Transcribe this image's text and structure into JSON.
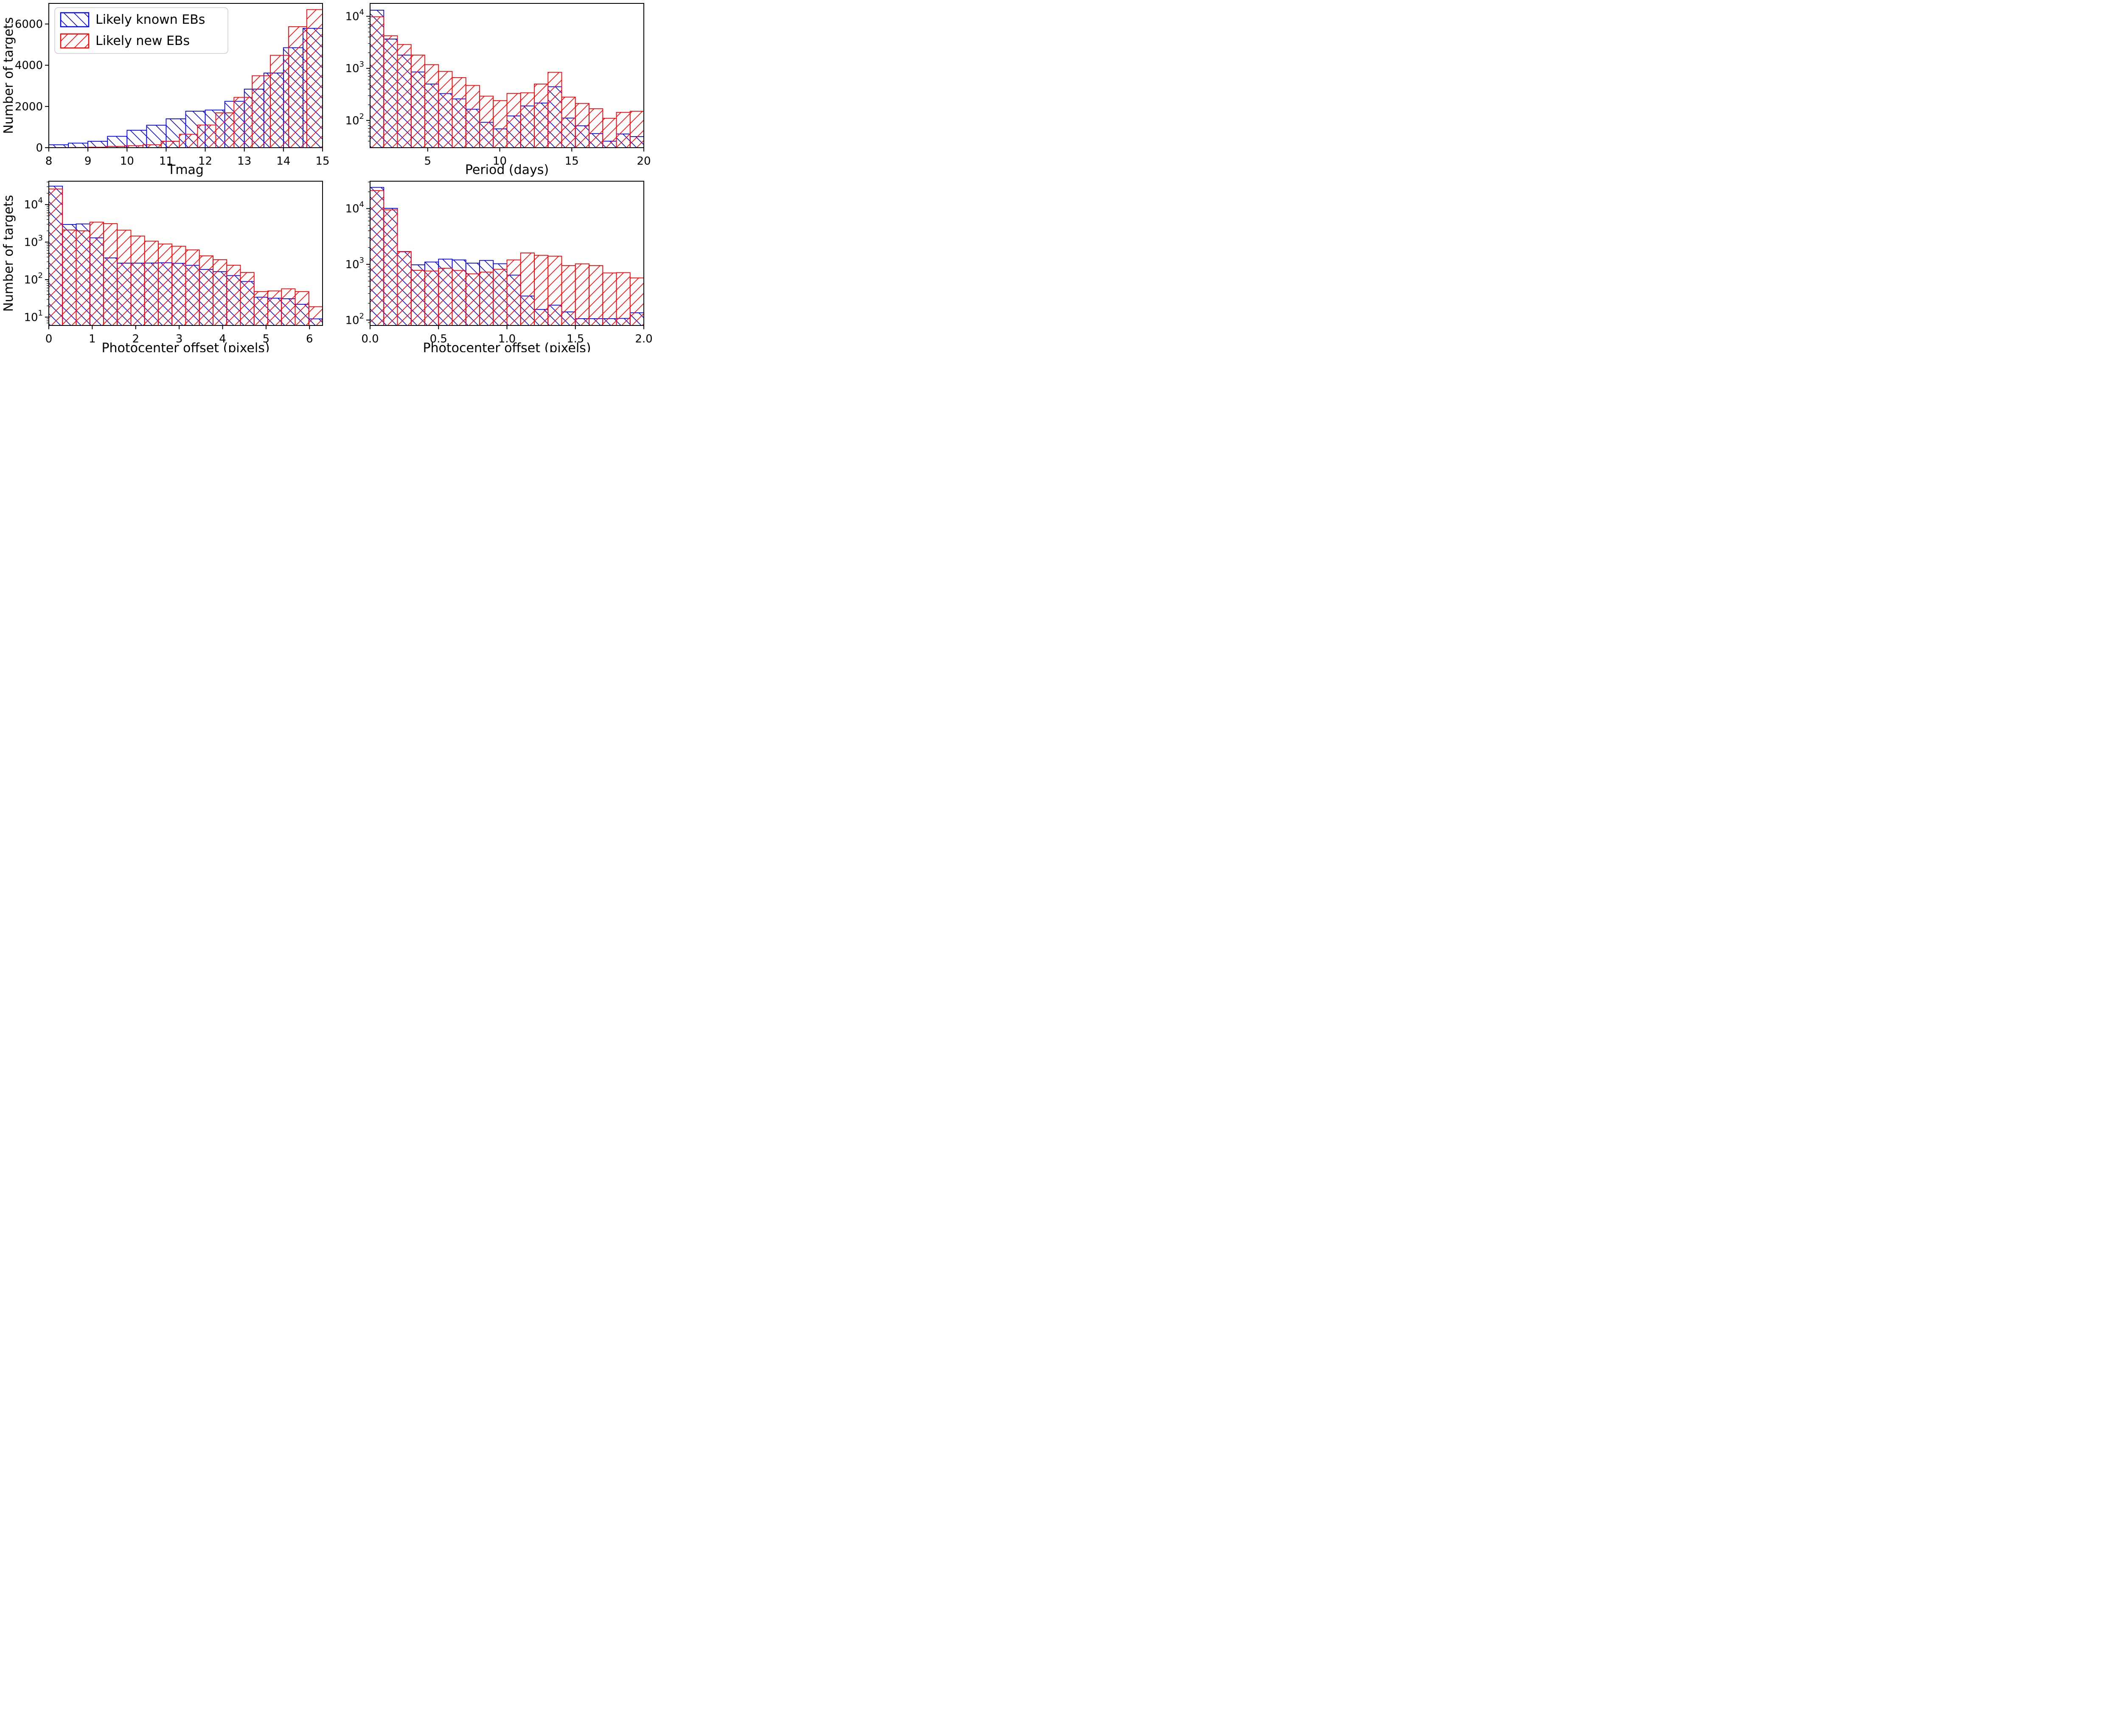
{
  "figure": {
    "background": "#ffffff",
    "axis_color": "#000000",
    "tick_label_color": "#000000",
    "legend": {
      "entries": [
        {
          "label": "Likely known EBs",
          "color": "#0000ff",
          "hatch": "\\"
        },
        {
          "label": "Likely new EBs",
          "color": "#ff0000",
          "hatch": "/"
        }
      ]
    }
  },
  "chart_data": [
    {
      "id": "tmag",
      "type": "histogram",
      "title": "",
      "xlabel": "Tmag",
      "ylabel": "Number of targets",
      "yscale": "linear",
      "xlim": [
        8,
        15
      ],
      "ylim": [
        0,
        7000
      ],
      "xticks": [
        8,
        9,
        10,
        11,
        12,
        13,
        14,
        15
      ],
      "xtick_labels": [
        "8",
        "9",
        "10",
        "11",
        "12",
        "13",
        "14",
        "15"
      ],
      "yticks": [
        0,
        2000,
        4000,
        6000
      ],
      "ytick_labels": [
        "0",
        "2000",
        "4000",
        "6000"
      ],
      "show_legend": true,
      "series": [
        {
          "name": "Likely known EBs",
          "color": "#0000ff",
          "hatch": "\\",
          "bin_start": 8.0,
          "bin_width": 0.5,
          "counts": [
            140,
            220,
            310,
            550,
            845,
            1090,
            1400,
            1770,
            1825,
            2250,
            2840,
            3620,
            4850,
            5790
          ]
        },
        {
          "name": "Likely new EBs",
          "color": "#ff0000",
          "hatch": "/",
          "bin_start": 8.08,
          "bin_width": 0.4655,
          "counts": [
            5,
            10,
            25,
            60,
            95,
            140,
            310,
            650,
            1100,
            1690,
            2440,
            3490,
            4480,
            5870,
            6700
          ]
        }
      ]
    },
    {
      "id": "period",
      "type": "histogram",
      "title": "",
      "xlabel": "Period (days)",
      "ylabel": "",
      "yscale": "log",
      "xlim": [
        1,
        20
      ],
      "ylim": [
        30,
        17700
      ],
      "xticks": [
        5,
        10,
        15,
        20
      ],
      "xtick_labels": [
        "5",
        "10",
        "15",
        "20"
      ],
      "ytick_exponents": [
        2,
        3,
        4
      ],
      "ytick_base": "10",
      "show_legend": false,
      "series": [
        {
          "name": "Likely known EBs",
          "color": "#0000ff",
          "hatch": "\\",
          "bin_start": 1.0,
          "bin_width": 0.95,
          "counts": [
            13100,
            3660,
            1800,
            853,
            500,
            328,
            259,
            164,
            92,
            69,
            122,
            190,
            216,
            444,
            111,
            79,
            56,
            40,
            55,
            49
          ]
        },
        {
          "name": "Likely new EBs",
          "color": "#ff0000",
          "hatch": "/",
          "bin_start": 1.0,
          "bin_width": 0.95,
          "counts": [
            9800,
            4230,
            2880,
            1800,
            1180,
            874,
            665,
            470,
            293,
            240,
            330,
            340,
            500,
            840,
            281,
            212,
            168,
            110,
            143,
            150
          ]
        }
      ]
    },
    {
      "id": "photocenter-offset-full",
      "type": "histogram",
      "title": "",
      "xlabel": "Photocenter offset (pixels)",
      "ylabel": "Number of targets",
      "yscale": "log",
      "xlim": [
        0,
        6.3
      ],
      "ylim": [
        6,
        42000
      ],
      "xticks": [
        0,
        1,
        2,
        3,
        4,
        5,
        6
      ],
      "xtick_labels": [
        "0",
        "1",
        "2",
        "3",
        "4",
        "5",
        "6"
      ],
      "ytick_exponents": [
        1,
        2,
        3,
        4
      ],
      "ytick_base": "10",
      "show_legend": false,
      "series": [
        {
          "name": "Likely known EBs",
          "color": "#0000ff",
          "hatch": "\\",
          "bin_start": 0.0,
          "bin_width": 0.315,
          "counts": [
            31000,
            2950,
            3050,
            1300,
            380,
            275,
            275,
            277,
            281,
            272,
            240,
            187,
            163,
            128,
            89,
            34,
            32,
            31,
            22,
            9
          ]
        },
        {
          "name": "Likely new EBs",
          "color": "#ff0000",
          "hatch": "/",
          "bin_start": 0.0,
          "bin_width": 0.315,
          "counts": [
            26000,
            2100,
            2000,
            3400,
            3100,
            2080,
            1450,
            1060,
            890,
            775,
            620,
            430,
            340,
            242,
            155,
            48,
            50,
            57,
            48,
            19
          ]
        }
      ]
    },
    {
      "id": "photocenter-offset-zoom",
      "type": "histogram",
      "title": "",
      "xlabel": "Photocenter offset (pixels)",
      "ylabel": "",
      "yscale": "log",
      "xlim": [
        0,
        2
      ],
      "ylim": [
        80,
        31000
      ],
      "xticks": [
        0,
        0.5,
        1,
        1.5,
        2
      ],
      "xtick_labels": [
        "0.0",
        "0.5",
        "1.0",
        "1.5",
        "2.0"
      ],
      "ytick_exponents": [
        2,
        3,
        4
      ],
      "ytick_base": "10",
      "show_legend": false,
      "series": [
        {
          "name": "Likely known EBs",
          "color": "#0000ff",
          "hatch": "\\",
          "bin_start": 0.0,
          "bin_width": 0.1,
          "counts": [
            24000,
            10100,
            1680,
            980,
            1100,
            1240,
            1200,
            1050,
            1175,
            1025,
            640,
            270,
            155,
            185,
            140,
            106,
            106,
            106,
            107,
            135
          ]
        },
        {
          "name": "Likely new EBs",
          "color": "#ff0000",
          "hatch": "/",
          "bin_start": 0.0,
          "bin_width": 0.1,
          "counts": [
            21000,
            9500,
            1700,
            780,
            760,
            850,
            775,
            675,
            725,
            815,
            1200,
            1600,
            1450,
            1400,
            950,
            1020,
            950,
            700,
            710,
            570
          ]
        }
      ]
    }
  ]
}
